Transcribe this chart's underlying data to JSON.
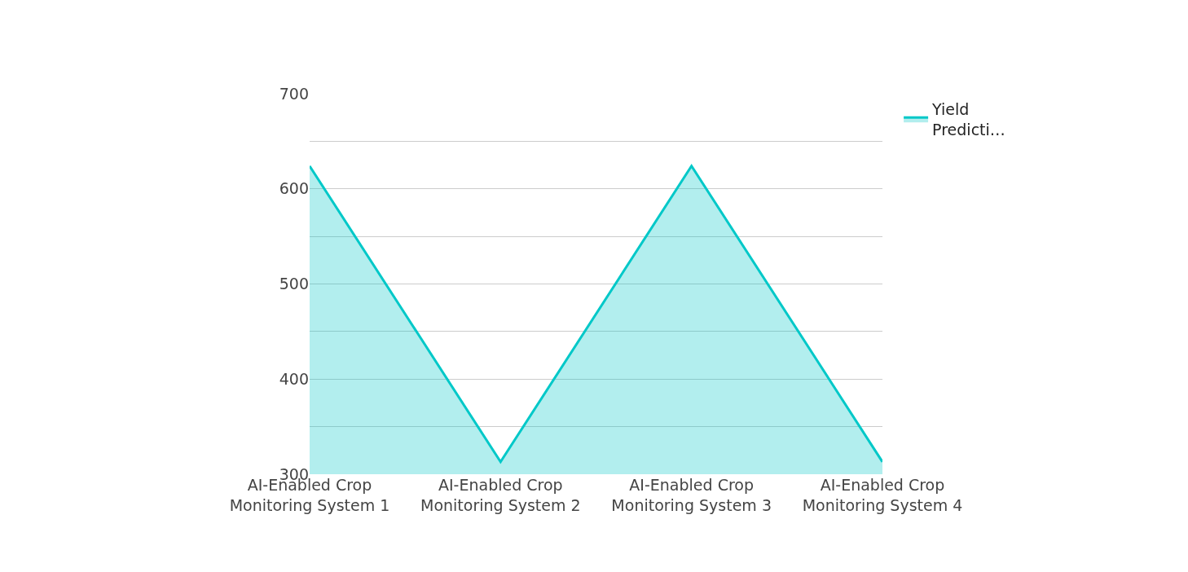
{
  "chart_data": {
    "type": "area",
    "categories": [
      "AI-Enabled Crop Monitoring System 1",
      "AI-Enabled Crop Monitoring System 2",
      "AI-Enabled Crop Monitoring System 3",
      "AI-Enabled Crop Monitoring System 4"
    ],
    "series": [
      {
        "name": "Yield Predicti…",
        "color": "#00c8c8",
        "values": [
          624,
          313,
          624,
          313
        ]
      }
    ],
    "ylim": [
      300,
      700
    ],
    "yticks": [
      300,
      {
        "value": 350,
        "label": null
      },
      400,
      {
        "value": 450,
        "label": null
      },
      500,
      {
        "value": 550,
        "label": null
      },
      600,
      {
        "value": 650,
        "label": null
      },
      700
    ],
    "grid": "y",
    "legend": "top right",
    "marker": "none",
    "line_style": "solid"
  }
}
